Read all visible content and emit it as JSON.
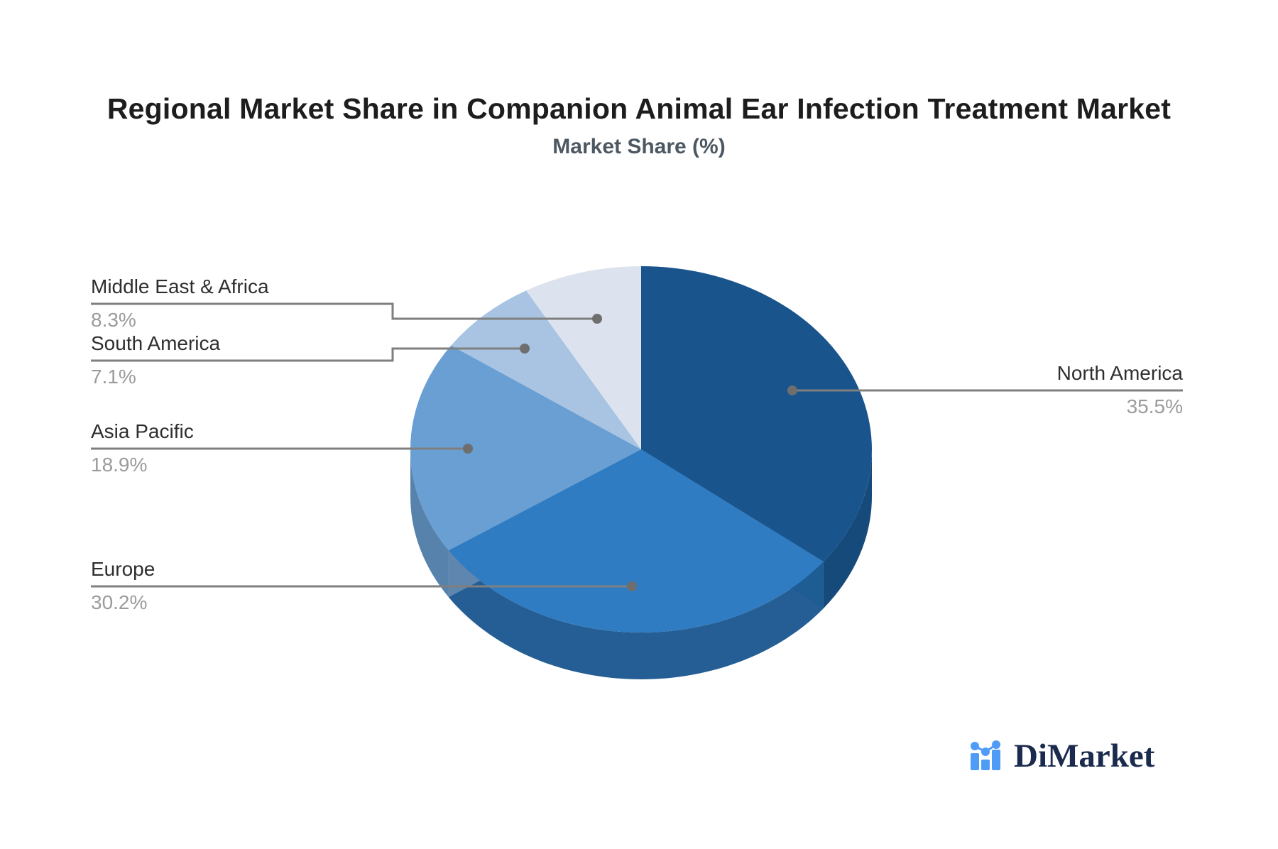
{
  "header": {
    "title": "Regional Market Share in Companion Animal Ear Infection Treatment Market",
    "subtitle": "Market Share (%)"
  },
  "chart_data": {
    "type": "pie",
    "title": "Regional Market Share in Companion Animal Ear Infection Treatment Market",
    "subtitle": "Market Share (%)",
    "unit": "%",
    "style_3d": true,
    "rotation": "clockwise",
    "start_angle_deg": 0,
    "slices": [
      {
        "label": "North America",
        "value": 35.5,
        "pct_label": "35.5%",
        "color": "#19548C",
        "side_color": "#164A7B"
      },
      {
        "label": "Europe",
        "value": 30.2,
        "pct_label": "30.2%",
        "color": "#2F7CC3",
        "side_color": "#245E94"
      },
      {
        "label": "Asia Pacific",
        "value": 18.9,
        "pct_label": "18.9%",
        "color": "#699FD2",
        "side_color": "#5682AC"
      },
      {
        "label": "South America",
        "value": 7.1,
        "pct_label": "7.1%",
        "color": "#A9C4E2",
        "side_color": "#8FA9C4"
      },
      {
        "label": "Middle East & Africa",
        "value": 8.3,
        "pct_label": "8.3%",
        "color": "#DDE3EE",
        "side_color": "#B9C2CF"
      }
    ],
    "boundary_faces": [
      {
        "angle_deg": 127.8,
        "color": "#1E5C94"
      },
      {
        "angle_deg": 236.52,
        "color": "#5E86AE"
      }
    ],
    "legend_position": "none",
    "connector_color": "#7F7F7F",
    "label_color": "#2E2E2E",
    "percent_color": "#9B9B9B"
  },
  "watermark": {
    "brand": "DiMarket"
  }
}
